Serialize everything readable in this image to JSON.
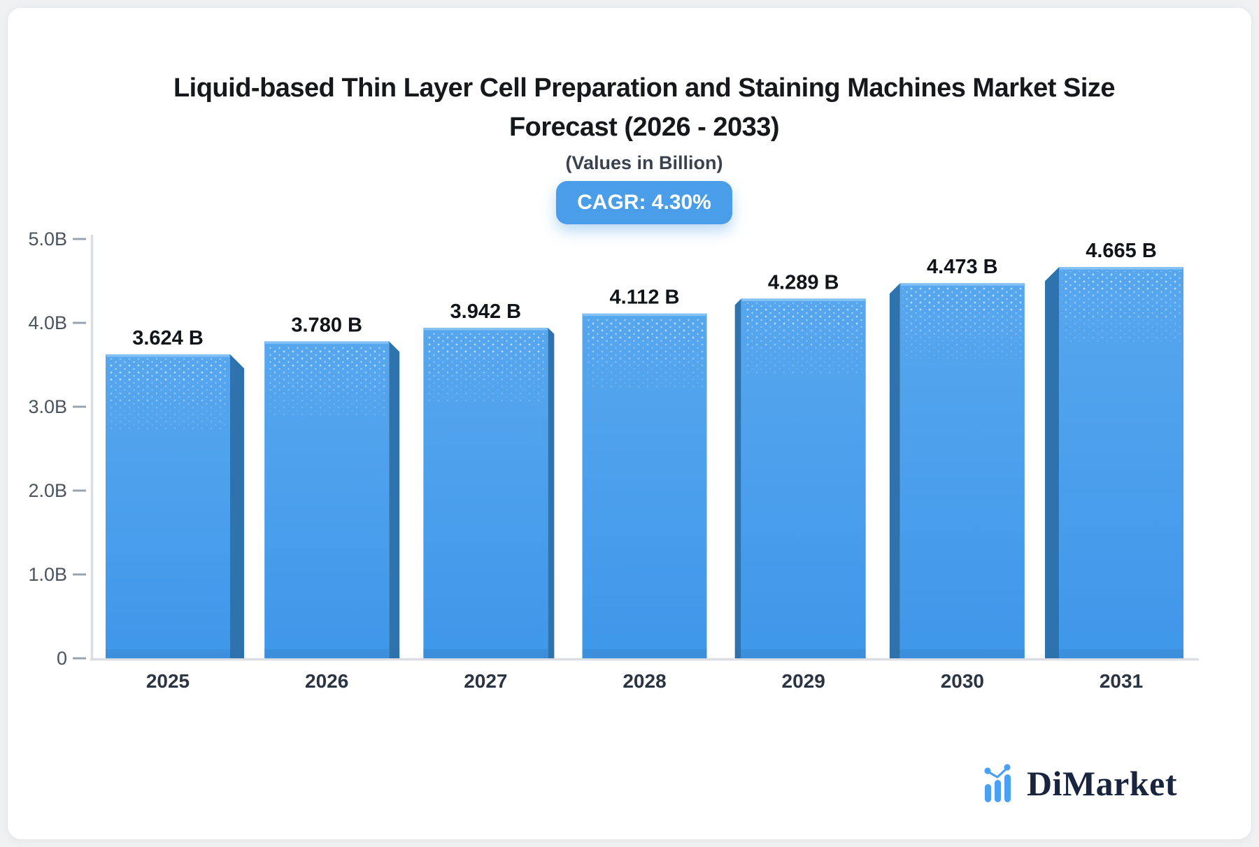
{
  "header": {
    "title_line1": "Liquid-based Thin Layer Cell Preparation and Staining Machines Market Size",
    "title_line2": "Forecast (2026 - 2033)",
    "subtitle": "(Values in Billion)",
    "badge_label": "CAGR: 4.30%",
    "badge_color": "#4a9de8"
  },
  "chart_data": {
    "type": "bar",
    "title": "Liquid-based Thin Layer Cell Preparation and Staining Machines Market Size Forecast (2026 - 2033)",
    "subtitle": "(Values in Billion)",
    "cagr": "4.30%",
    "categories": [
      "2025",
      "2026",
      "2027",
      "2028",
      "2029",
      "2030",
      "2031"
    ],
    "values": [
      3.624,
      3.78,
      3.942,
      4.112,
      4.289,
      4.473,
      4.665
    ],
    "value_labels": [
      "3.624 B",
      "3.780 B",
      "3.942 B",
      "4.112 B",
      "4.289 B",
      "4.473 B",
      "4.665 B"
    ],
    "xlabel": "",
    "ylabel": "",
    "ylim": [
      0,
      5
    ],
    "y_ticks": [
      {
        "label": "0",
        "value": 0
      },
      {
        "label": "1.0B",
        "value": 1
      },
      {
        "label": "2.0B",
        "value": 2
      },
      {
        "label": "3.0B",
        "value": 3
      },
      {
        "label": "4.0B",
        "value": 4
      },
      {
        "label": "5.0B",
        "value": 5
      }
    ],
    "grid": "off",
    "legend": "none",
    "colors": {
      "bar_top": "#57a7ee",
      "bar_bottom": "#3f97ea",
      "bar_side": "#2e73ae",
      "bar_highlight": "#8ac4f4",
      "axis_line": "#dadee3",
      "tick_dash": "#9aa4ae",
      "y_label": "#4a545f",
      "x_label": "#2b3442",
      "value_label": "#111418"
    }
  },
  "logo": {
    "text": "DiMarket",
    "icon": "mini-bar-chart-icon",
    "icon_color": "#4aa0f4",
    "text_color": "#19243f"
  }
}
